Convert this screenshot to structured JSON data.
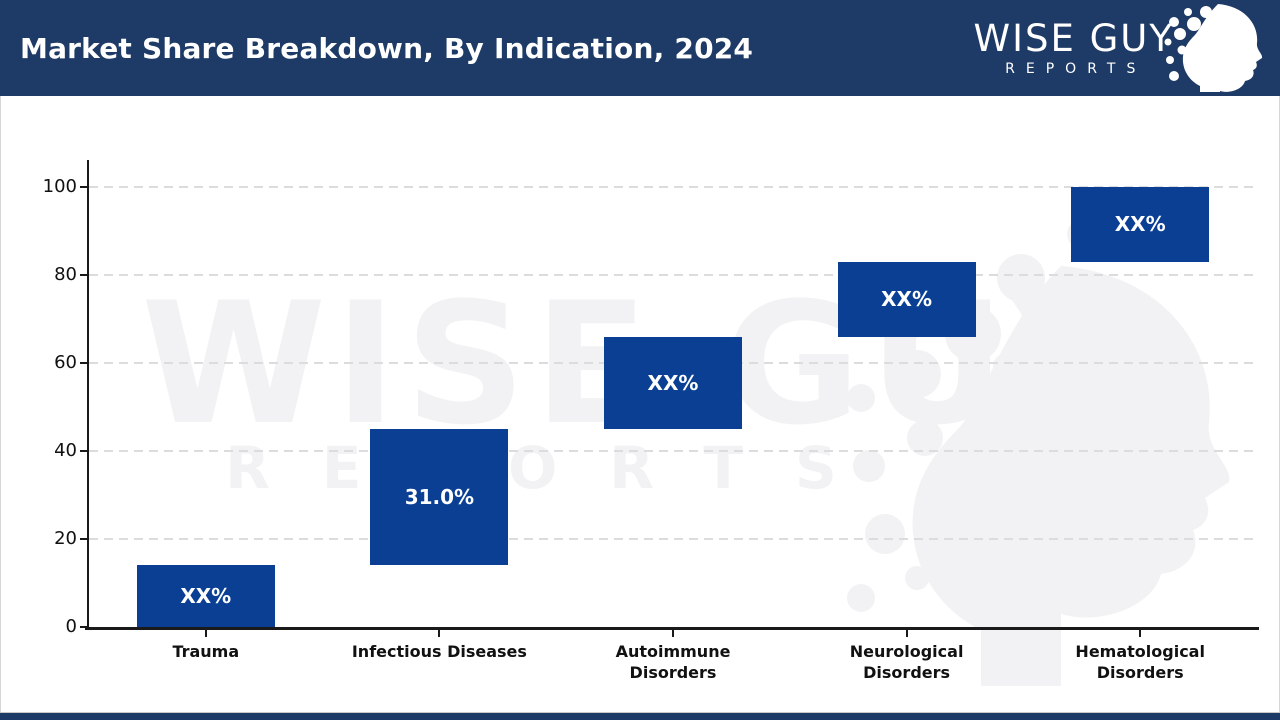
{
  "header": {
    "title": "Market Share Breakdown, By Indication, 2024",
    "bg_color": "#1e3a66",
    "logo": {
      "line1": "WISE GUY",
      "line2": "REPORTS"
    }
  },
  "watermark": {
    "line1": "WISE GUY",
    "line2": "REPORTS"
  },
  "chart_data": {
    "type": "bar",
    "variant": "waterfall",
    "title": "Market Share Breakdown, By Indication, 2024",
    "categories": [
      "Trauma",
      "Infectious Diseases",
      "Autoimmune Disorders",
      "Neurological Disorders",
      "Hematological Disorders"
    ],
    "bars": [
      {
        "category": "Trauma",
        "start": 0,
        "end": 14,
        "value": 14,
        "label": "XX%"
      },
      {
        "category": "Infectious Diseases",
        "start": 14,
        "end": 45,
        "value": 31,
        "label": "31.0%"
      },
      {
        "category": "Autoimmune Disorders",
        "start": 45,
        "end": 66,
        "value": 21,
        "label": "XX%"
      },
      {
        "category": "Neurological Disorders",
        "start": 66,
        "end": 83,
        "value": 17,
        "label": "XX%"
      },
      {
        "category": "Hematological Disorders",
        "start": 83,
        "end": 100,
        "value": 17,
        "label": "XX%"
      }
    ],
    "bar_color": "#0a3f94",
    "bar_label_color": "#ffffff",
    "ylim": [
      0,
      100
    ],
    "yticks": [
      0,
      20,
      40,
      60,
      80,
      100
    ],
    "grid": {
      "axis": "y",
      "style": "dashed",
      "color": "#dcdcdc"
    },
    "legend": "none",
    "xlabel": "",
    "ylabel": ""
  }
}
